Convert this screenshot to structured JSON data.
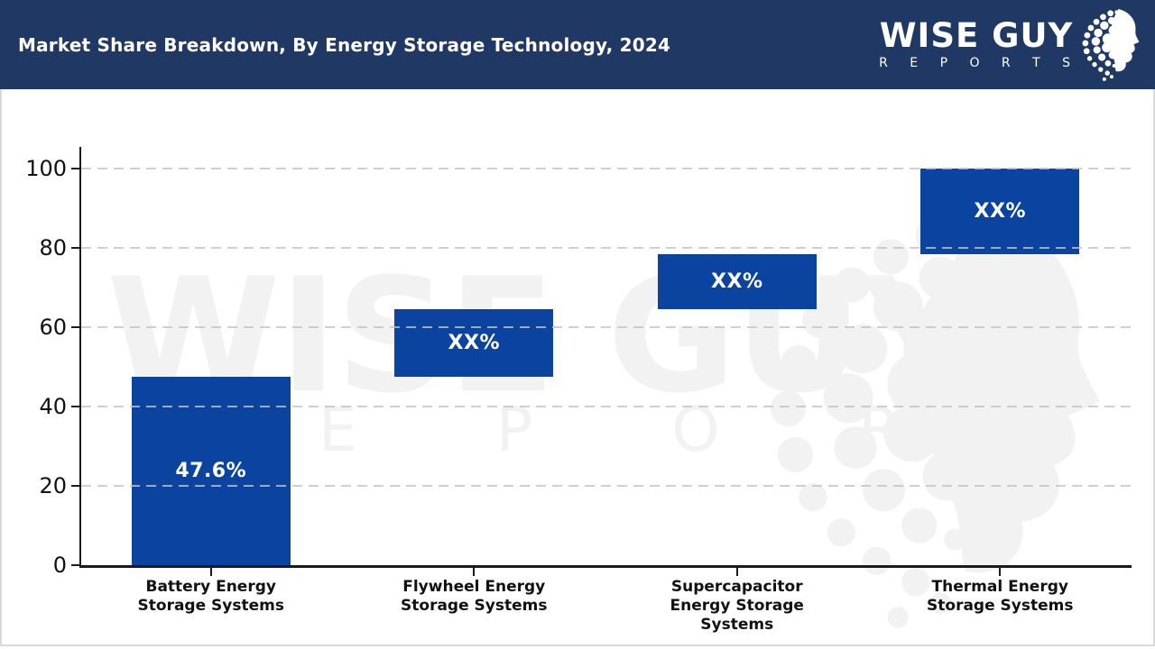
{
  "header": {
    "title": "Market Share Breakdown, By Energy Storage Technology, 2024",
    "logo": {
      "line1": "WISE GUY",
      "line2": "R E P O R T S",
      "head_icon": "dotted-head-profile"
    }
  },
  "watermark": {
    "line1": "WISE GUY",
    "line2": "R E P O R T S",
    "head_icon": "dotted-head-profile"
  },
  "colors": {
    "header_bg": "#1f3864",
    "bar_fill": "#0a43a0",
    "bar_label_text": "#ffffff",
    "axis": "#1a1a1a",
    "grid": "#c9c9c9",
    "watermark": "#f2f2f2",
    "card_border": "#d9d9d9"
  },
  "chart_data": {
    "type": "bar",
    "subtype": "waterfall",
    "title": "Market Share Breakdown, By Energy Storage Technology, 2024",
    "xlabel": "",
    "ylabel": "",
    "ylim": [
      0,
      100
    ],
    "yticks": [
      0,
      20,
      40,
      60,
      80,
      100
    ],
    "grid": "horizontal-dashed",
    "legend": "none",
    "categories": [
      "Battery Energy Storage Systems",
      "Flywheel Energy Storage Systems",
      "Supercapacitor Energy Storage Systems",
      "Thermal Energy Storage Systems"
    ],
    "segments": [
      {
        "start": 0,
        "end": 47.6,
        "label": "47.6%"
      },
      {
        "start": 47.6,
        "end": 64.6,
        "label": "XX%"
      },
      {
        "start": 64.6,
        "end": 78.3,
        "label": "XX%"
      },
      {
        "start": 78.3,
        "end": 100,
        "label": "XX%"
      }
    ]
  },
  "xaxis": {
    "tick_lines": [
      [
        "Battery Energy",
        "Storage Systems"
      ],
      [
        "Flywheel Energy",
        "Storage Systems"
      ],
      [
        "Supercapacitor",
        "Energy Storage",
        "Systems"
      ],
      [
        "Thermal Energy",
        "Storage Systems"
      ]
    ]
  }
}
